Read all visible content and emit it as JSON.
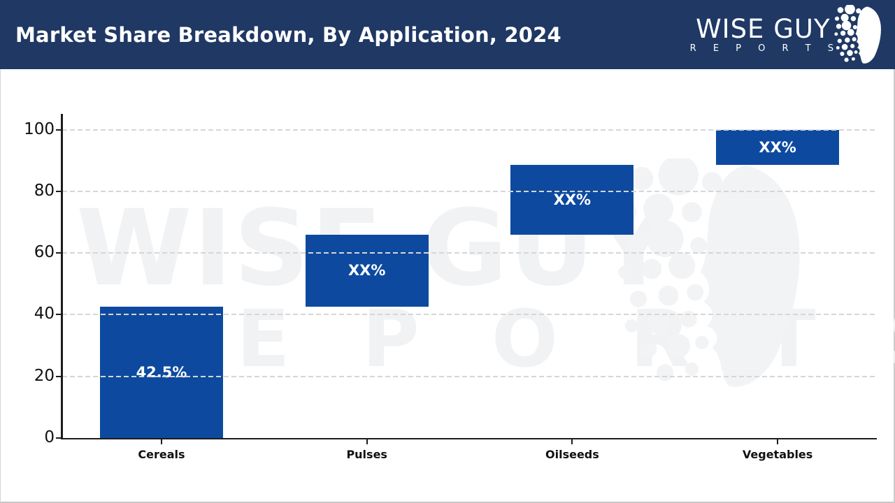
{
  "header": {
    "title": "Market Share Breakdown, By Application, 2024",
    "logo": {
      "name": "WISE GUY",
      "subtitle": "R E P O R T S"
    }
  },
  "watermark": {
    "line1": "WISE GUY",
    "line2": "R E P O R T S"
  },
  "chart_data": {
    "type": "bar",
    "subtype": "waterfall-floating-bars",
    "title": "Market Share Breakdown, By Application, 2024",
    "categories": [
      "Cereals",
      "Pulses",
      "Oilseeds",
      "Vegetables"
    ],
    "segments": [
      {
        "category": "Cereals",
        "start": 0,
        "end": 42.5,
        "label": "42.5%"
      },
      {
        "category": "Pulses",
        "start": 42.5,
        "end": 66,
        "label": "XX%"
      },
      {
        "category": "Oilseeds",
        "start": 66,
        "end": 88.5,
        "label": "XX%"
      },
      {
        "category": "Vegetables",
        "start": 88.5,
        "end": 100,
        "label": "XX%"
      }
    ],
    "yticks": [
      0,
      20,
      40,
      60,
      80,
      100
    ],
    "ylim": [
      0,
      105
    ],
    "xlabel": "",
    "ylabel": "",
    "legend": "none",
    "grid": "horizontal dashed lines drawn above bars",
    "bar_color": "#0d4a9f",
    "bar_label_color": "#ffffff"
  },
  "colors": {
    "header_bg": "#1f3864",
    "bar": "#0d4a9f",
    "grid": "#d6d6d6",
    "axis": "#1c1c1c",
    "watermark": "#f1f2f4",
    "frame_border": "#cccccc"
  }
}
